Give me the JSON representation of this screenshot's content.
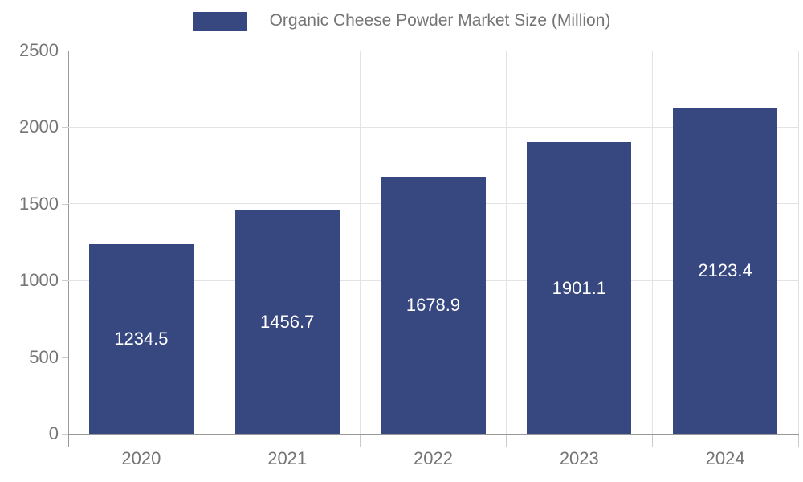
{
  "chart_data": {
    "type": "bar",
    "title": "Organic Cheese Powder Market Size (Million)",
    "series_name": "Organic Cheese Powder Market Size (Million)",
    "categories": [
      "2020",
      "2021",
      "2022",
      "2023",
      "2024"
    ],
    "values": [
      1234.5,
      1456.7,
      1678.9,
      1901.1,
      2123.4
    ],
    "value_labels": [
      "1234.5",
      "1456.7",
      "1678.9",
      "1901.1",
      "2123.4"
    ],
    "xlabel": "",
    "ylabel": "",
    "ylim": [
      0,
      2500
    ],
    "y_ticks": [
      0,
      500,
      1000,
      1500,
      2000,
      2500
    ],
    "grid": true,
    "legend_position": "top",
    "colors": {
      "bar": "#374880",
      "axis": "#999999",
      "grid": "#e3e3e6",
      "tick": "#c9c9cf",
      "text": "#757575",
      "bar_label": "#ffffff",
      "background": "#ffffff"
    }
  }
}
